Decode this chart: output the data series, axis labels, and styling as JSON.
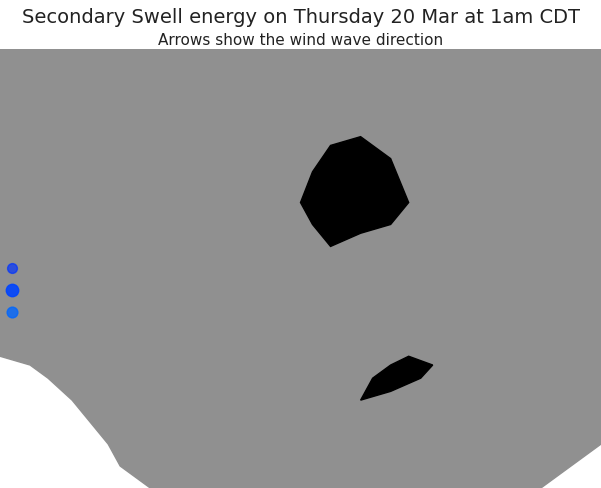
{
  "title": "Secondary Swell energy on Thursday 20 Mar at 1am CDT",
  "subtitle": "Arrows show the wind wave direction",
  "title_fontsize": 14,
  "subtitle_fontsize": 11,
  "title_color": "#222222",
  "bg_color": "#ffffff",
  "map_bg": "#aaaaaa",
  "water_color": "#000000",
  "highlight_color": "#0000ff",
  "figsize": [
    6.01,
    4.88
  ],
  "dpi": 100
}
